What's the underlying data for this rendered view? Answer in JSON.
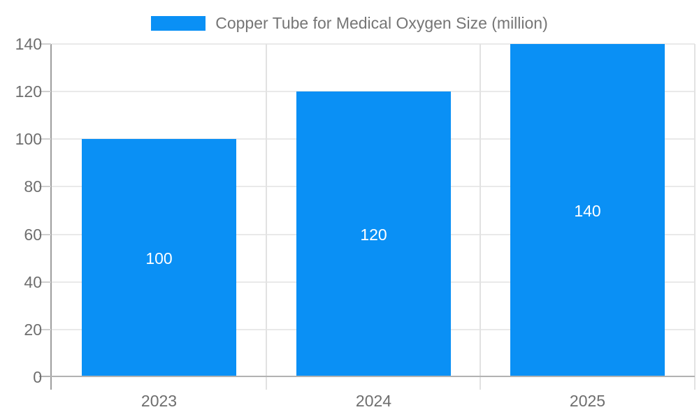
{
  "legend": {
    "label": "Copper Tube for Medical Oxygen Size (million)"
  },
  "chart_data": {
    "type": "bar",
    "title": "",
    "series_name": "Copper Tube for Medical Oxygen Size (million)",
    "categories": [
      "2023",
      "2024",
      "2025"
    ],
    "values": [
      100,
      120,
      140
    ],
    "data_labels": [
      "100",
      "120",
      "140"
    ],
    "y_ticks": [
      "0",
      "20",
      "40",
      "60",
      "80",
      "100",
      "120",
      "140"
    ],
    "ylim": [
      0,
      140
    ],
    "xlabel": "",
    "ylabel": "",
    "grid": true,
    "legend_position": "top-center",
    "bar_color": "#0a90f5",
    "data_label_color": "#ffffff",
    "axis_label_color": "#6e6e6e",
    "legend_text_color": "#757575",
    "gridline_color": "#e9e9e9",
    "separator_color": "#e2e2e2",
    "axis_line_color": "#9e9e9e",
    "background": "#ffffff"
  }
}
